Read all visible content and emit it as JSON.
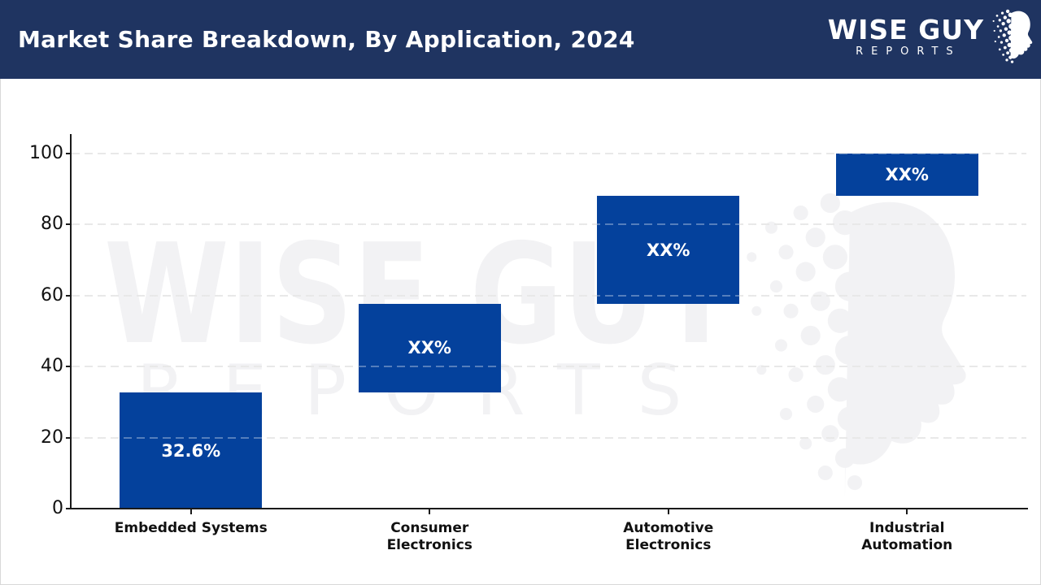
{
  "header": {
    "bg_color": "#1f3461",
    "title": "Market Share Breakdown, By Application, 2024",
    "logo": {
      "line1": "WISE GUY",
      "line2": "REPORTS"
    }
  },
  "watermark": {
    "line1": "WISE GUY",
    "line2": "REPORTS"
  },
  "chart_data": {
    "type": "bar",
    "subtype": "waterfall",
    "title": "Market Share Breakdown, By Application, 2024",
    "categories": [
      "Embedded Systems",
      "Consumer Electronics",
      "Automotive Electronics",
      "Industrial Automation"
    ],
    "category_label_lines": [
      [
        "Embedded Systems"
      ],
      [
        "Consumer",
        "Electronics"
      ],
      [
        "Automotive",
        "Electronics"
      ],
      [
        "Industrial",
        "Automation"
      ]
    ],
    "segments": [
      {
        "category": "Embedded Systems",
        "start": 0,
        "end": 32.6,
        "value": 32.6,
        "label": "32.6%"
      },
      {
        "category": "Consumer Electronics",
        "start": 32.6,
        "end": 57.7,
        "value": 25.1,
        "label": "XX%"
      },
      {
        "category": "Automotive Electronics",
        "start": 57.7,
        "end": 87.9,
        "value": 30.2,
        "label": "XX%"
      },
      {
        "category": "Industrial Automation",
        "start": 87.9,
        "end": 100,
        "value": 12.1,
        "label": "XX%"
      }
    ],
    "yticks": [
      0,
      20,
      40,
      60,
      80,
      100
    ],
    "ylim": [
      0,
      105
    ],
    "xlabel": "",
    "ylabel": "",
    "grid": "horizontal-dashed",
    "legend": "none",
    "bar_color": "#04419c",
    "bar_label_color": "#ffffff",
    "axis_color": "#1a1a1a",
    "grid_color": "#dedede"
  }
}
